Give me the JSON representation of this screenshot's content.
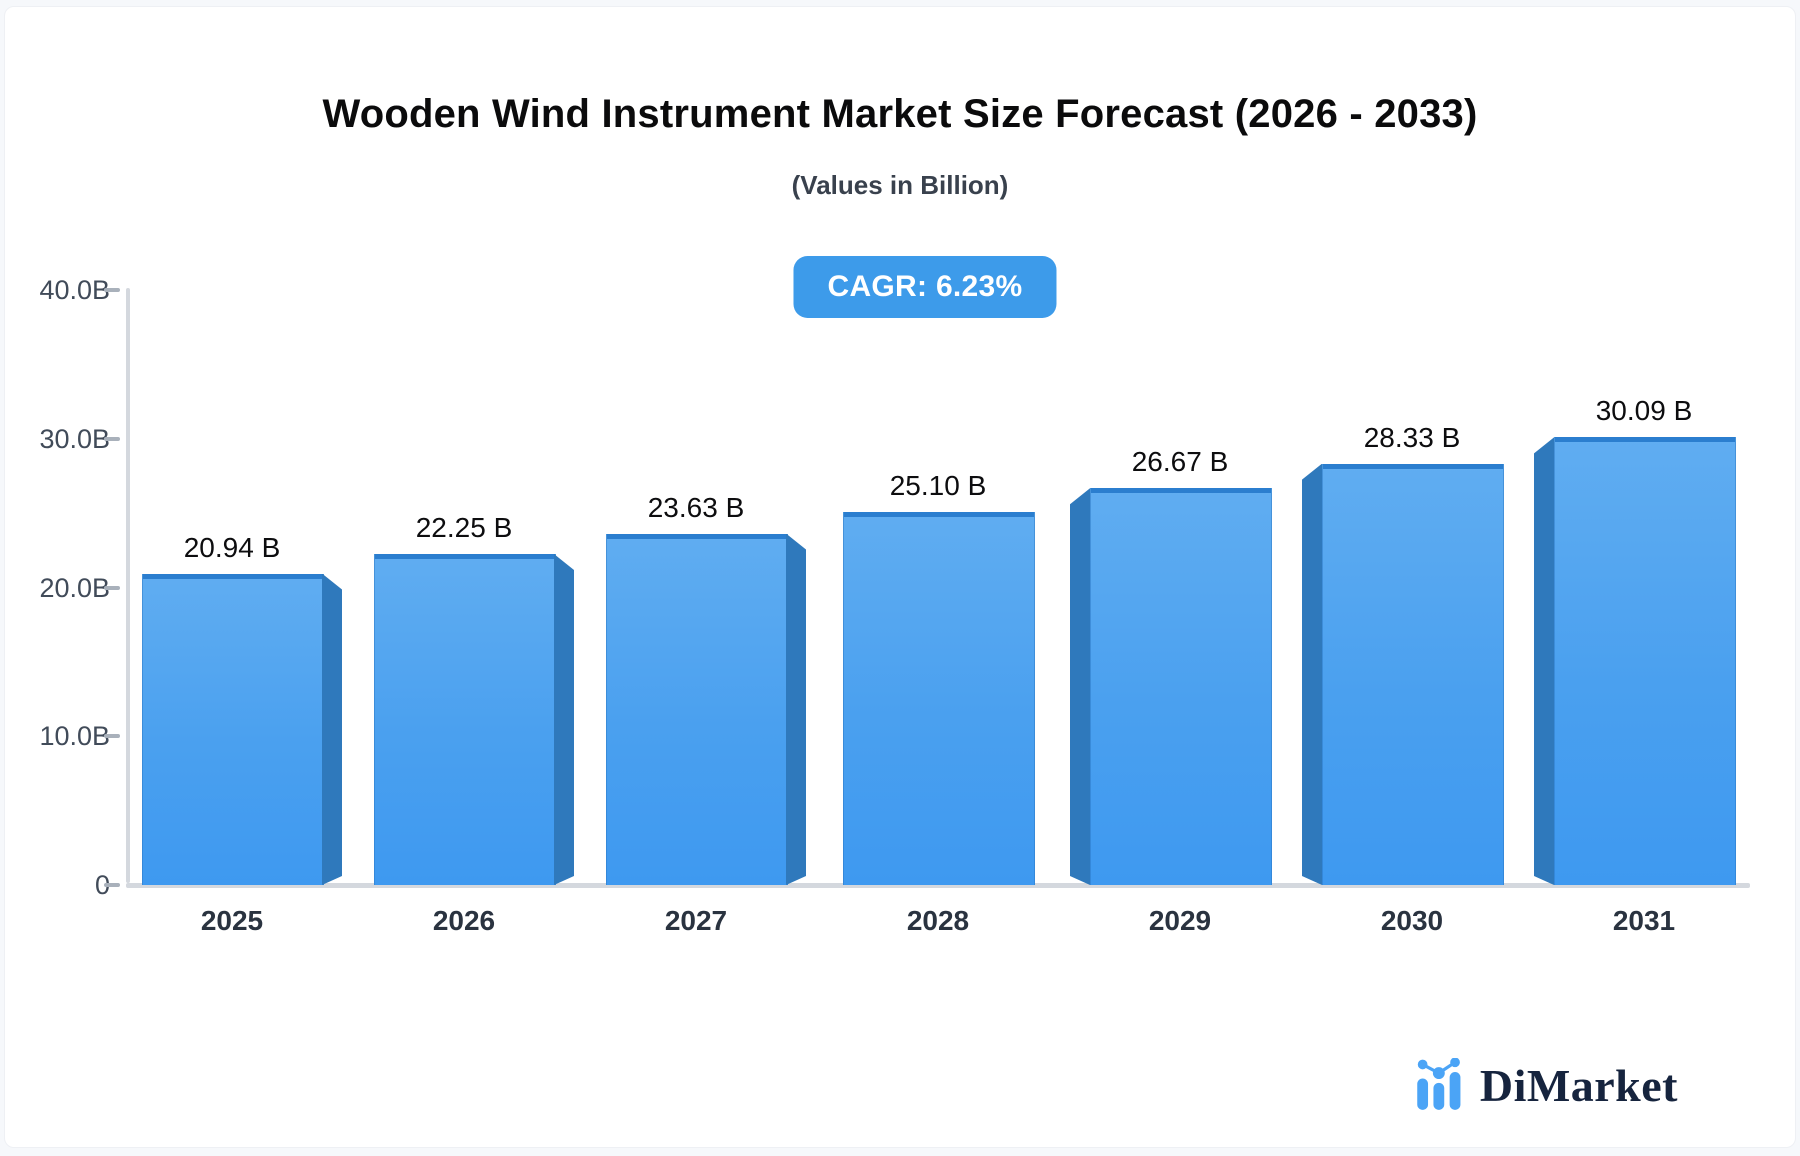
{
  "page": {
    "title": "Wooden Wind Instrument Market Size Forecast (2026 - 2033)",
    "subtitle": "(Values in Billion)",
    "badge": "CAGR: 6.23%",
    "logo_text": "DiMarket"
  },
  "chart_data": {
    "type": "bar",
    "title": "Wooden Wind Instrument Market Size Forecast (2026 - 2033)",
    "subtitle": "(Values in Billion)",
    "cagr_label": "CAGR: 6.23%",
    "categories": [
      "2025",
      "2026",
      "2027",
      "2028",
      "2029",
      "2030",
      "2031"
    ],
    "values": [
      20.94,
      22.25,
      23.63,
      25.1,
      26.67,
      28.33,
      30.09
    ],
    "value_labels": [
      "20.94 B",
      "22.25 B",
      "23.63 B",
      "25.10 B",
      "26.67 B",
      "28.33 B",
      "30.09 B"
    ],
    "unit": "Billion",
    "xlabel": "",
    "ylabel": "",
    "ylim": [
      0,
      40
    ],
    "y_ticks": [
      {
        "value": 0,
        "label": "0"
      },
      {
        "value": 10,
        "label": "10.0B"
      },
      {
        "value": 20,
        "label": "20.0B"
      },
      {
        "value": 30,
        "label": "30.0B"
      },
      {
        "value": 40,
        "label": "40.0B"
      }
    ],
    "grid": "off",
    "legend": "none",
    "colors": {
      "bar_face_top": "#60ADF1",
      "bar_face_bottom": "#3E99F0",
      "bar_top_edge": "#2B7ECF",
      "bar_side": "#2F79BC",
      "badge_bg": "#3D9BEA",
      "badge_text": "#FFFFFF",
      "axis": "#D4D8DE",
      "logo_blue": "#4BA4F6",
      "logo_navy": "#16243E"
    }
  }
}
